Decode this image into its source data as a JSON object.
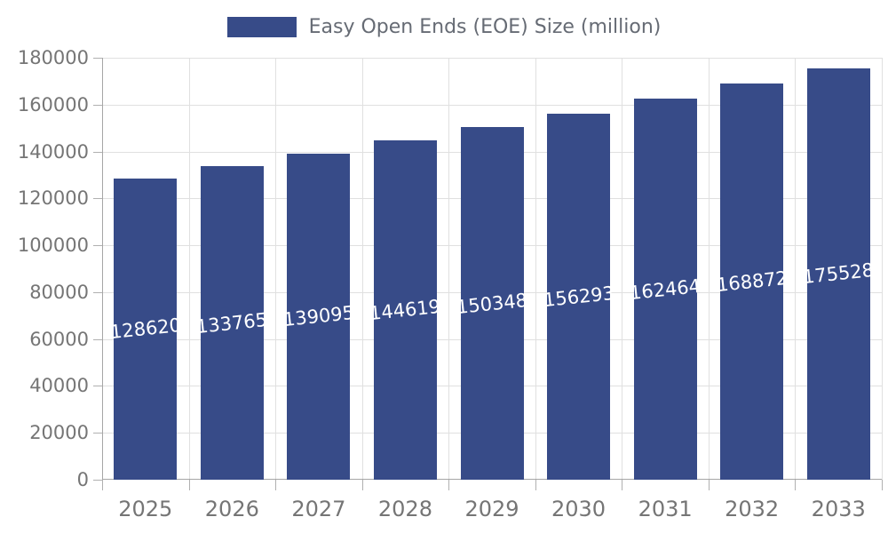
{
  "chart_data": {
    "type": "bar",
    "title": "",
    "legend": "Easy Open Ends (EOE) Size (million)",
    "legend_position": "top-center",
    "categories": [
      "2025",
      "2026",
      "2027",
      "2028",
      "2029",
      "2030",
      "2031",
      "2032",
      "2033"
    ],
    "series": [
      {
        "name": "Easy Open Ends (EOE) Size (million)",
        "values": [
          128620,
          133765,
          139095,
          144619,
          150348,
          156293,
          162464,
          168872,
          175528
        ]
      }
    ],
    "bar_value_labels": [
      "128620",
      "133765",
      "139095",
      "144619",
      "150348",
      "156293",
      "162464",
      "168872",
      "175528"
    ],
    "xlabel": "",
    "ylabel": "",
    "ylim": [
      0,
      180000
    ],
    "ytick_step": 20000,
    "ytick_labels": [
      "0",
      "20000",
      "40000",
      "60000",
      "80000",
      "100000",
      "120000",
      "140000",
      "160000",
      "180000"
    ],
    "grid": true
  },
  "colors": {
    "bar": "#374b88",
    "bar_label_text": "#ffffff",
    "axis_label_text": "#757575",
    "legend_text": "#666b74",
    "axis_line": "#a6a6a6",
    "tick": "#b0b0b0",
    "gridline": "#e0e0e0",
    "background": "#ffffff"
  }
}
